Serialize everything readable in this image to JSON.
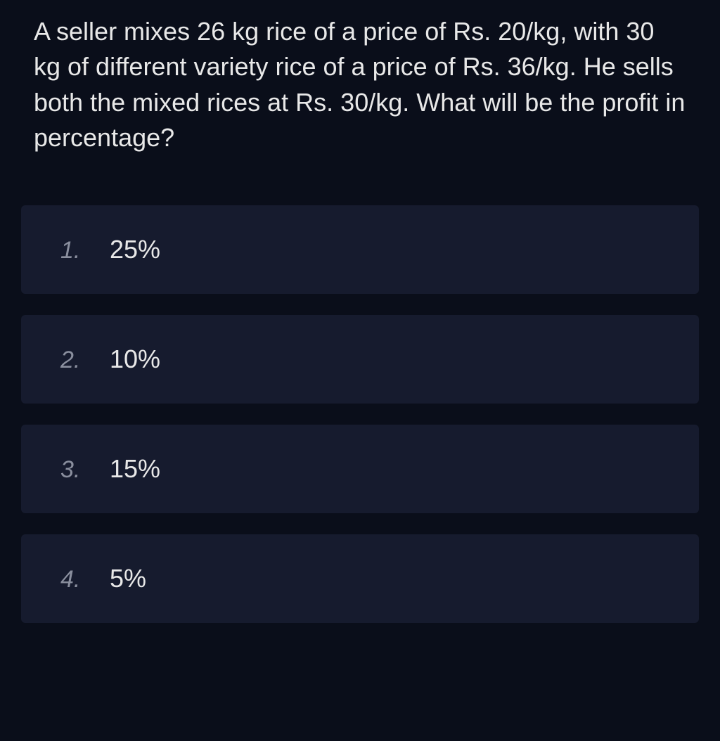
{
  "question": {
    "text": "A seller mixes 26 kg rice of a price of Rs. 20/kg, with 30 kg of different variety rice of a price of Rs. 36/kg. He sells both the mixed rices at Rs. 30/kg. What will be the profit in percentage?"
  },
  "options": [
    {
      "number": "1.",
      "text": "25%"
    },
    {
      "number": "2.",
      "text": "10%"
    },
    {
      "number": "3.",
      "text": "15%"
    },
    {
      "number": "4.",
      "text": "5%"
    }
  ],
  "colors": {
    "background": "#0a0e1a",
    "option_background": "#161b2e",
    "text_primary": "#e8e8e8",
    "text_secondary": "#8a8f9e"
  },
  "typography": {
    "question_fontsize": 36,
    "option_number_fontsize": 34,
    "option_text_fontsize": 36
  }
}
